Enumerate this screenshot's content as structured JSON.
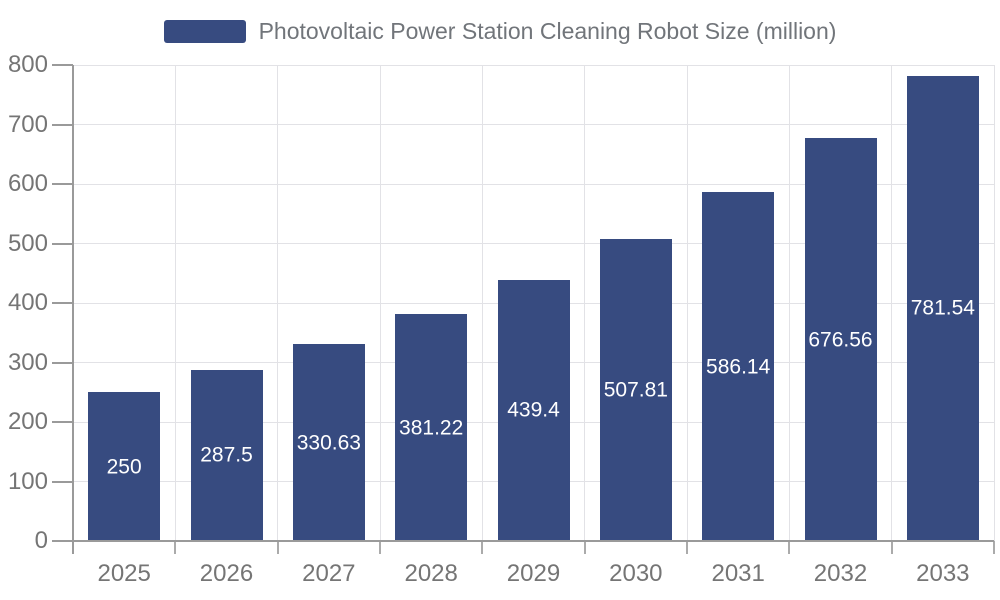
{
  "legend": {
    "label": "Photovoltaic Power Station Cleaning Robot Size (million)"
  },
  "chart_data": {
    "type": "bar",
    "title": "Photovoltaic Power Station Cleaning Robot Size (million)",
    "categories": [
      "2025",
      "2026",
      "2027",
      "2028",
      "2029",
      "2030",
      "2031",
      "2032",
      "2033"
    ],
    "values": [
      250,
      287.5,
      330.63,
      381.22,
      439.4,
      507.81,
      586.14,
      676.56,
      781.54
    ],
    "bar_labels": [
      "250",
      "287.5",
      "330.63",
      "381.22",
      "439.4",
      "507.81",
      "586.14",
      "676.56",
      "781.54"
    ],
    "xlabel": "",
    "ylabel": "",
    "ylim": [
      0,
      800
    ],
    "yticks": [
      0,
      100,
      200,
      300,
      400,
      500,
      600,
      700,
      800
    ],
    "grid": true,
    "legend_position": "top",
    "label_position": "inside-center",
    "colors": {
      "bar": "#374B80",
      "bar_label": "#ffffff",
      "axis_text": "#757575",
      "legend_text": "#71757a",
      "grid_line": "#e2e2e6",
      "axis_line": "#9a9a9a"
    }
  }
}
